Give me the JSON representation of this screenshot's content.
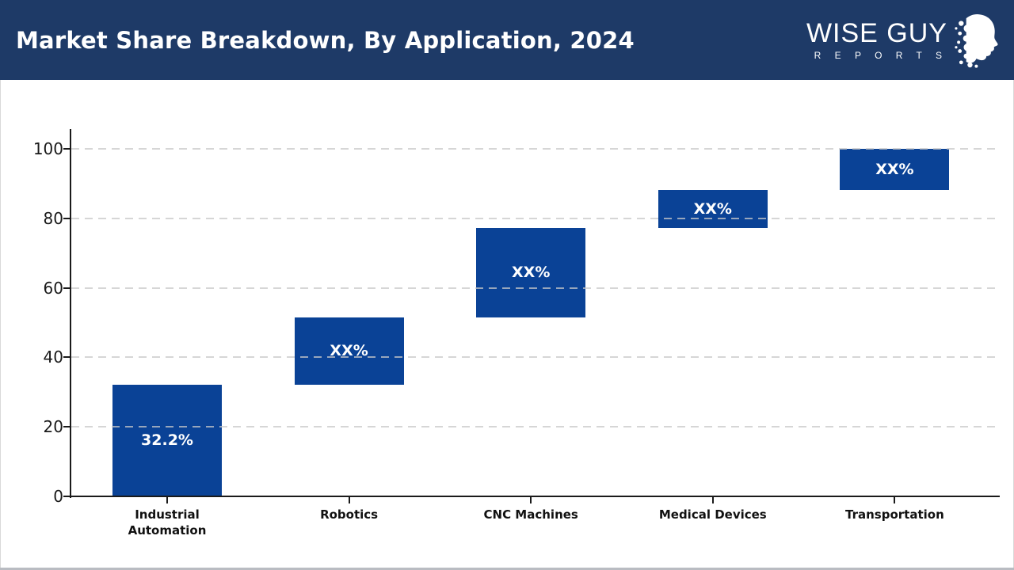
{
  "header": {
    "title": "Market Share Breakdown, By Application, 2024",
    "logo": {
      "line1": "WISE GUY",
      "line2": "R E P O R T S"
    }
  },
  "watermark": {
    "line1": "WISE GUY",
    "line2": "R E P O R T S"
  },
  "chart_data": {
    "type": "bar",
    "subtype": "waterfall",
    "title": "Market Share Breakdown, By Application, 2024",
    "categories": [
      "Industrial\nAutomation",
      "Robotics",
      "CNC Machines",
      "Medical Devices",
      "Transportation"
    ],
    "segments": [
      {
        "category": "Industrial Automation",
        "start": 0,
        "end": 32.2,
        "value": 32.2,
        "label": "32.2%"
      },
      {
        "category": "Robotics",
        "start": 32.2,
        "end": 51.5,
        "value": 19.3,
        "label": "XX%"
      },
      {
        "category": "CNC Machines",
        "start": 51.5,
        "end": 77.2,
        "value": 25.7,
        "label": "XX%"
      },
      {
        "category": "Medical Devices",
        "start": 77.2,
        "end": 88.2,
        "value": 11.0,
        "label": "XX%"
      },
      {
        "category": "Transportation",
        "start": 88.2,
        "end": 100,
        "value": 11.8,
        "label": "XX%"
      }
    ],
    "ylim": [
      0,
      100
    ],
    "yticks": [
      0,
      20,
      40,
      60,
      80,
      100
    ],
    "grid": "horizontal-dashed",
    "legend": "none",
    "bar_color": "#0A4296",
    "bar_label_color": "#FFFFFF",
    "header_color": "#1E3A67",
    "axis_color": "#1A1A1A"
  }
}
